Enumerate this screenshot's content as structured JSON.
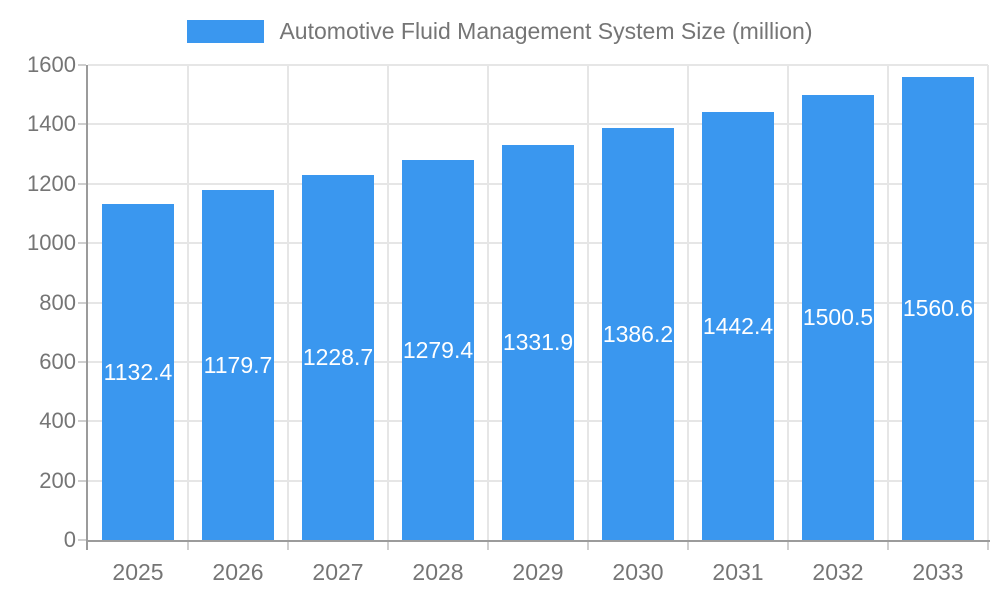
{
  "legend": {
    "swatch_color": "#3A97EF"
  },
  "chart_data": {
    "type": "bar",
    "title": "",
    "xlabel": "",
    "ylabel": "",
    "legend": [
      "Automotive Fluid Management System Size (million)"
    ],
    "legend_position": "top",
    "categories": [
      "2025",
      "2026",
      "2027",
      "2028",
      "2029",
      "2030",
      "2031",
      "2032",
      "2033"
    ],
    "values": [
      1132.4,
      1179.7,
      1228.7,
      1279.4,
      1331.9,
      1386.2,
      1442.4,
      1500.5,
      1560.6
    ],
    "value_labels": [
      "1132.4",
      "1179.7",
      "1228.7",
      "1279.4",
      "1331.9",
      "1386.2",
      "1442.4",
      "1500.5",
      "1560.6"
    ],
    "ylim": [
      0,
      1600
    ],
    "yticks": [
      0,
      200,
      400,
      600,
      800,
      1000,
      1200,
      1400,
      1600
    ],
    "grid": true,
    "colors": {
      "bar": "#3A97EF",
      "bar_value_text": "#FFFFFF",
      "axis_line": "#9B9B9B",
      "gridline": "#E6E6E6",
      "tick": "#CFCFCF",
      "label_text": "#757575"
    }
  }
}
